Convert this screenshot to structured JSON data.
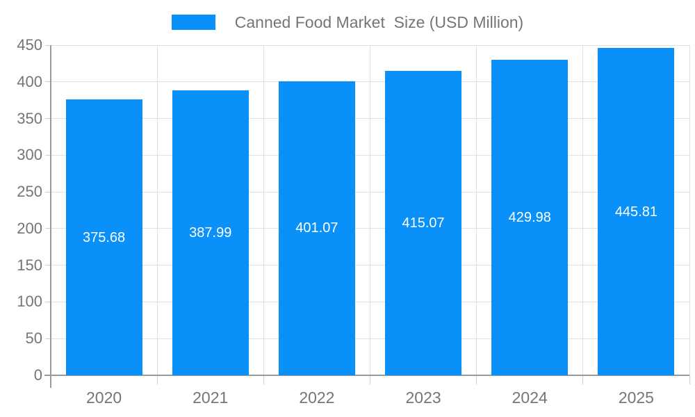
{
  "legend": {
    "label": "Canned Food Market  Size (USD Million)",
    "swatch_color": "#0991f9"
  },
  "chart_data": {
    "type": "bar",
    "title": "Canned Food Market Size (USD Million)",
    "series_name": "Canned Food Market Size (USD Million)",
    "categories": [
      "2020",
      "2021",
      "2022",
      "2023",
      "2024",
      "2025"
    ],
    "values": [
      375.68,
      387.99,
      401.07,
      415.07,
      429.98,
      445.81
    ],
    "value_labels": [
      "375.68",
      "387.99",
      "401.07",
      "415.07",
      "429.98",
      "445.81"
    ],
    "xlabel": "",
    "ylabel": "",
    "ylim": [
      0,
      450
    ],
    "yticks": [
      0,
      50,
      100,
      150,
      200,
      250,
      300,
      350,
      400,
      450
    ],
    "grid": true,
    "legend_position": "top-center",
    "bar_color": "#0991f9",
    "axis_color": "#999999",
    "grid_color": "#e0e0e0",
    "tick_color": "#cfcfcf",
    "text_color": "#757575",
    "value_label_color": "#ffffff"
  }
}
